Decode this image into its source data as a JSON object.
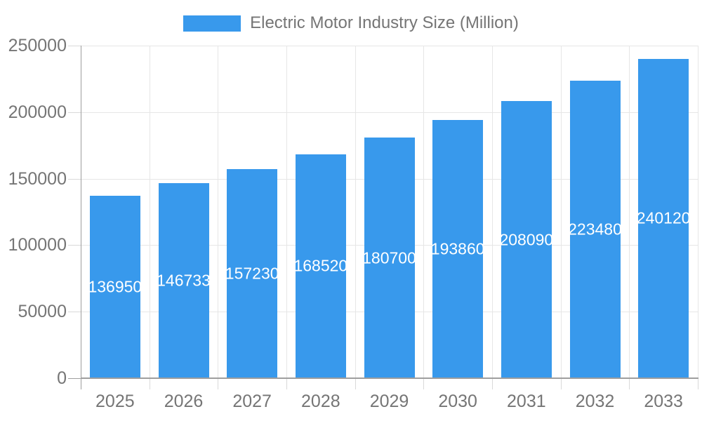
{
  "legend": {
    "label": "Electric Motor Industry Size (Million)"
  },
  "chart_data": {
    "type": "bar",
    "title": "Electric Motor Industry Size (Million)",
    "legend_position": "top",
    "categories": [
      "2025",
      "2026",
      "2027",
      "2028",
      "2029",
      "2030",
      "2031",
      "2032",
      "2033"
    ],
    "series": [
      {
        "name": "Electric Motor Industry Size (Million)",
        "values": [
          136950,
          146733,
          157230,
          168520,
          180700,
          193860,
          208090,
          223480,
          240120
        ]
      }
    ],
    "xlabel": "",
    "ylabel": "",
    "ylim": [
      0,
      250000
    ],
    "yticks": [
      0,
      50000,
      100000,
      150000,
      200000,
      250000
    ],
    "ytick_labels": [
      "0",
      "50000",
      "100000",
      "150000",
      "200000",
      "250000"
    ],
    "grid": true,
    "value_labels": "inside-center",
    "colors": {
      "bar": "#3899EC",
      "value_label": "#ffffff",
      "axis_text": "#757575",
      "gridline": "#e6e6e6",
      "tick": "#d9d9d9",
      "axis_line": "#9e9e9e",
      "background": "#ffffff"
    }
  }
}
